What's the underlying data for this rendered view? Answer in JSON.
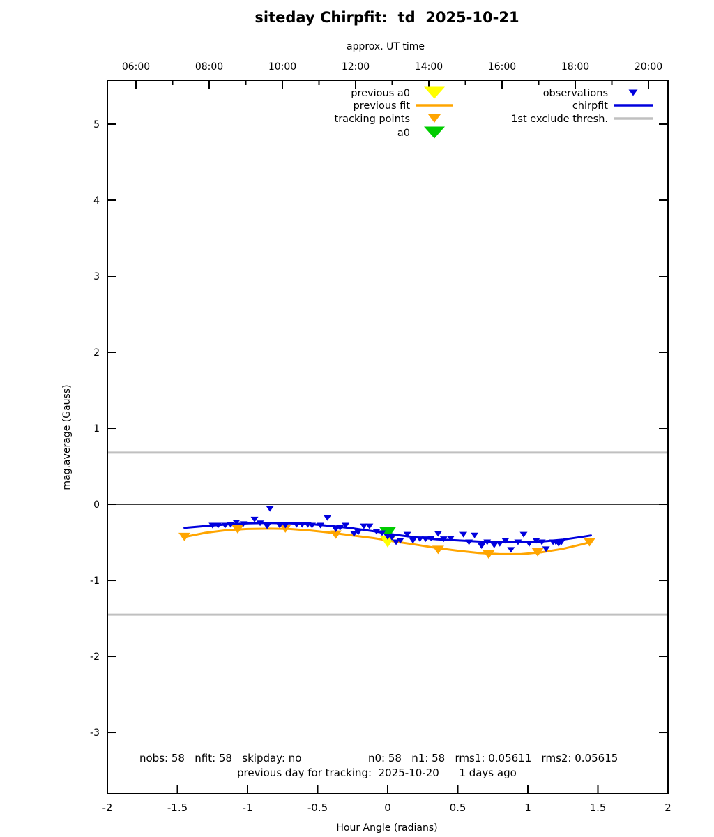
{
  "title": "siteday Chirpfit:  td  2025-10-21",
  "stats": {
    "line1_left": "nobs: 58   nfit: 58   skipday: no",
    "line1_right": "n0: 58   n1: 58   rms1: 0.05611   rms2: 0.05615",
    "line2": "previous day for tracking:  2025-10-20      1 days ago"
  },
  "legend": {
    "left": [
      {
        "label": "previous a0",
        "marker": "triangle-large",
        "color": "#ffff00"
      },
      {
        "label": "previous fit",
        "marker": "line",
        "color": "#ffa500"
      },
      {
        "label": "tracking points",
        "marker": "triangle-small",
        "color": "#ffa500"
      },
      {
        "label": "a0",
        "marker": "triangle-large",
        "color": "#00cc00"
      }
    ],
    "right": [
      {
        "label": "observations",
        "marker": "triangle-tiny",
        "color": "#0000dd"
      },
      {
        "label": "chirpfit",
        "marker": "line",
        "color": "#0000dd"
      },
      {
        "label": "1st exclude thresh.",
        "marker": "line",
        "color": "#c0c0c0"
      }
    ]
  },
  "chart_data": {
    "type": "scatter",
    "title": "siteday Chirpfit:  td  2025-10-21",
    "xlabel": "Hour Angle (radians)",
    "ylabel": "mag.average (Gauss)",
    "x2label": "approx. UT time",
    "xlim": [
      -2,
      2
    ],
    "ylim": [
      -3.807,
      5.578
    ],
    "grid": false,
    "legend_position": "top-inside",
    "x_ticks": [
      -2,
      -1.5,
      -1,
      -0.5,
      0,
      0.5,
      1,
      1.5,
      2
    ],
    "x_tick_labels": [
      "-2",
      "-1.5",
      "-1",
      "-0.5",
      "0",
      "0.5",
      "1",
      "1.5",
      "2"
    ],
    "y_ticks": [
      -3,
      -2,
      -1,
      0,
      1,
      2,
      3,
      4,
      5
    ],
    "y_tick_labels": [
      "-3",
      "-2",
      "-1",
      "0",
      "1",
      "2",
      "3",
      "4",
      "5"
    ],
    "ut_major_hours": [
      6,
      8,
      10,
      12,
      14,
      16,
      18,
      20
    ],
    "ut_major_labels": [
      "06:00",
      "08:00",
      "10:00",
      "12:00",
      "14:00",
      "16:00",
      "18:00",
      "20:00"
    ],
    "ut_minor_hours": [
      7,
      9,
      11,
      13,
      15,
      17,
      19
    ],
    "zero_line": 0,
    "exclude_thresholds": {
      "color": "#c0c0c0",
      "values": [
        0.68,
        -1.45
      ]
    },
    "series": {
      "observations": {
        "name": "observations",
        "color": "#0000dd",
        "marker": "triangle-down",
        "points": [
          [
            -1.25,
            -0.28
          ],
          [
            -1.21,
            -0.28
          ],
          [
            -1.16,
            -0.28
          ],
          [
            -1.12,
            -0.27
          ],
          [
            -1.08,
            -0.24
          ],
          [
            -1.03,
            -0.26
          ],
          [
            -0.95,
            -0.2
          ],
          [
            -0.91,
            -0.25
          ],
          [
            -0.86,
            -0.29
          ],
          [
            -0.84,
            -0.06
          ],
          [
            -0.77,
            -0.28
          ],
          [
            -0.73,
            -0.28
          ],
          [
            -0.65,
            -0.27
          ],
          [
            -0.61,
            -0.27
          ],
          [
            -0.57,
            -0.27
          ],
          [
            -0.54,
            -0.28
          ],
          [
            -0.48,
            -0.28
          ],
          [
            -0.43,
            -0.18
          ],
          [
            -0.37,
            -0.33
          ],
          [
            -0.34,
            -0.31
          ],
          [
            -0.3,
            -0.28
          ],
          [
            -0.24,
            -0.39
          ],
          [
            -0.21,
            -0.37
          ],
          [
            -0.17,
            -0.29
          ],
          [
            -0.13,
            -0.29
          ],
          [
            -0.08,
            -0.36
          ],
          [
            -0.04,
            -0.38
          ],
          [
            0.0,
            -0.43
          ],
          [
            0.03,
            -0.44
          ],
          [
            0.06,
            -0.5
          ],
          [
            0.09,
            -0.48
          ],
          [
            0.14,
            -0.4
          ],
          [
            0.18,
            -0.48
          ],
          [
            0.23,
            -0.46
          ],
          [
            0.27,
            -0.46
          ],
          [
            0.31,
            -0.45
          ],
          [
            0.36,
            -0.39
          ],
          [
            0.4,
            -0.46
          ],
          [
            0.45,
            -0.45
          ],
          [
            0.54,
            -0.4
          ],
          [
            0.58,
            -0.5
          ],
          [
            0.62,
            -0.41
          ],
          [
            0.67,
            -0.55
          ],
          [
            0.71,
            -0.5
          ],
          [
            0.76,
            -0.54
          ],
          [
            0.8,
            -0.52
          ],
          [
            0.84,
            -0.48
          ],
          [
            0.88,
            -0.6
          ],
          [
            0.93,
            -0.5
          ],
          [
            0.97,
            -0.4
          ],
          [
            1.01,
            -0.52
          ],
          [
            1.06,
            -0.48
          ],
          [
            1.1,
            -0.5
          ],
          [
            1.13,
            -0.59
          ],
          [
            1.18,
            -0.5
          ],
          [
            1.2,
            -0.5
          ],
          [
            1.22,
            -0.52
          ],
          [
            1.24,
            -0.5
          ]
        ]
      },
      "chirpfit": {
        "name": "chirpfit",
        "color": "#0000dd",
        "style": "line",
        "points": [
          [
            -1.45,
            -0.31
          ],
          [
            -1.3,
            -0.285
          ],
          [
            -1.15,
            -0.265
          ],
          [
            -1.0,
            -0.25
          ],
          [
            -0.85,
            -0.245
          ],
          [
            -0.7,
            -0.25
          ],
          [
            -0.55,
            -0.26
          ],
          [
            -0.4,
            -0.285
          ],
          [
            -0.25,
            -0.315
          ],
          [
            -0.1,
            -0.355
          ],
          [
            0.05,
            -0.4
          ],
          [
            0.2,
            -0.435
          ],
          [
            0.35,
            -0.46
          ],
          [
            0.5,
            -0.475
          ],
          [
            0.65,
            -0.49
          ],
          [
            0.8,
            -0.5
          ],
          [
            0.95,
            -0.5
          ],
          [
            1.1,
            -0.49
          ],
          [
            1.25,
            -0.465
          ],
          [
            1.4,
            -0.425
          ],
          [
            1.45,
            -0.41
          ]
        ]
      },
      "previous_fit": {
        "name": "previous fit",
        "color": "#ffa500",
        "style": "line",
        "points": [
          [
            -1.45,
            -0.43
          ],
          [
            -1.3,
            -0.375
          ],
          [
            -1.15,
            -0.34
          ],
          [
            -1.0,
            -0.325
          ],
          [
            -0.85,
            -0.32
          ],
          [
            -0.7,
            -0.325
          ],
          [
            -0.55,
            -0.345
          ],
          [
            -0.4,
            -0.375
          ],
          [
            -0.25,
            -0.41
          ],
          [
            -0.1,
            -0.445
          ],
          [
            0.05,
            -0.49
          ],
          [
            0.2,
            -0.53
          ],
          [
            0.35,
            -0.575
          ],
          [
            0.5,
            -0.61
          ],
          [
            0.65,
            -0.64
          ],
          [
            0.8,
            -0.655
          ],
          [
            0.95,
            -0.655
          ],
          [
            1.1,
            -0.63
          ],
          [
            1.25,
            -0.585
          ],
          [
            1.4,
            -0.52
          ],
          [
            1.44,
            -0.5
          ]
        ]
      },
      "tracking_points": {
        "name": "tracking points",
        "color": "#ffa500",
        "marker": "triangle-down",
        "points": [
          [
            -1.45,
            -0.43
          ],
          [
            -1.07,
            -0.33
          ],
          [
            -0.73,
            -0.32
          ],
          [
            -0.37,
            -0.4
          ],
          [
            0.01,
            -0.475
          ],
          [
            0.36,
            -0.6
          ],
          [
            0.72,
            -0.66
          ],
          [
            1.07,
            -0.63
          ],
          [
            1.44,
            -0.5
          ]
        ]
      },
      "previous_a0": {
        "name": "previous a0",
        "color": "#ffff00",
        "marker": "triangle-down-large",
        "points": [
          [
            0.0,
            -0.49
          ]
        ]
      },
      "a0": {
        "name": "a0",
        "color": "#00cc00",
        "marker": "triangle-down-large",
        "points": [
          [
            0.0,
            -0.38
          ]
        ]
      }
    }
  }
}
